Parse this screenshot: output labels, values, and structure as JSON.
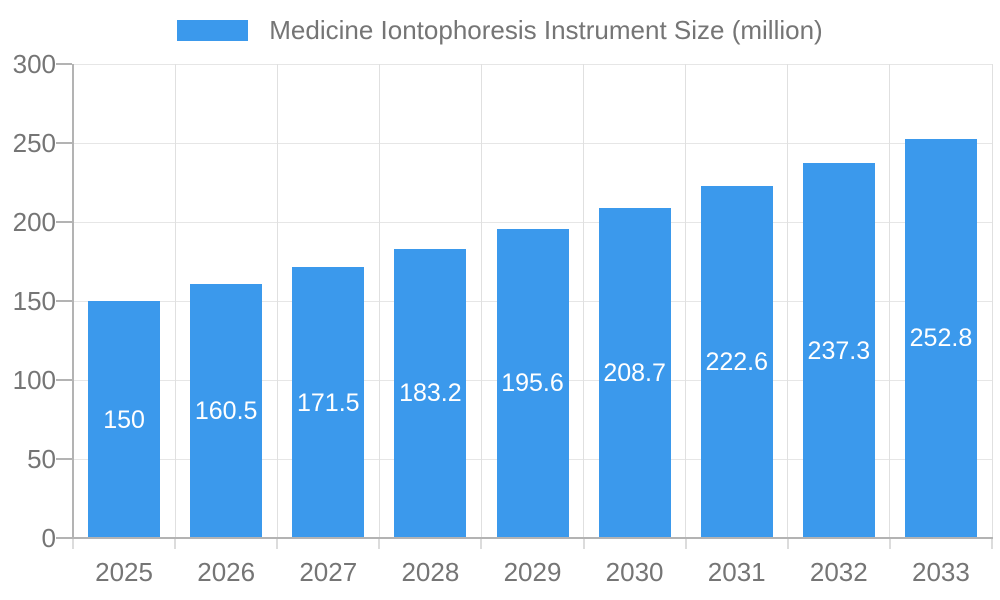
{
  "chart_data": {
    "type": "bar",
    "title": "",
    "legend": "Medicine Iontophoresis Instrument Size (million)",
    "legend_position": "top",
    "categories": [
      "2025",
      "2026",
      "2027",
      "2028",
      "2029",
      "2030",
      "2031",
      "2032",
      "2033"
    ],
    "values": [
      150,
      160.5,
      171.5,
      183.2,
      195.6,
      208.7,
      222.6,
      237.3,
      252.8
    ],
    "bar_labels": [
      "150",
      "160.5",
      "171.5",
      "183.2",
      "195.6",
      "208.7",
      "222.6",
      "237.3",
      "252.8"
    ],
    "xlabel": "",
    "ylabel": "",
    "ylim": [
      0,
      300
    ],
    "y_ticks": [
      0,
      50,
      100,
      150,
      200,
      250,
      300
    ],
    "grid": "on",
    "colors": {
      "bar": "#3B99EC",
      "bar_label_text": "#ffffff",
      "axis_line": "#b3b3b3",
      "h_gridline": "#e6e6e6",
      "v_gridline": "#e0e0e0",
      "y_tick": "#b3b3b3",
      "x_tick": "#dcdcdc",
      "axis_label_text": "#757575",
      "legend_text": "#757575",
      "background": "#ffffff"
    }
  }
}
